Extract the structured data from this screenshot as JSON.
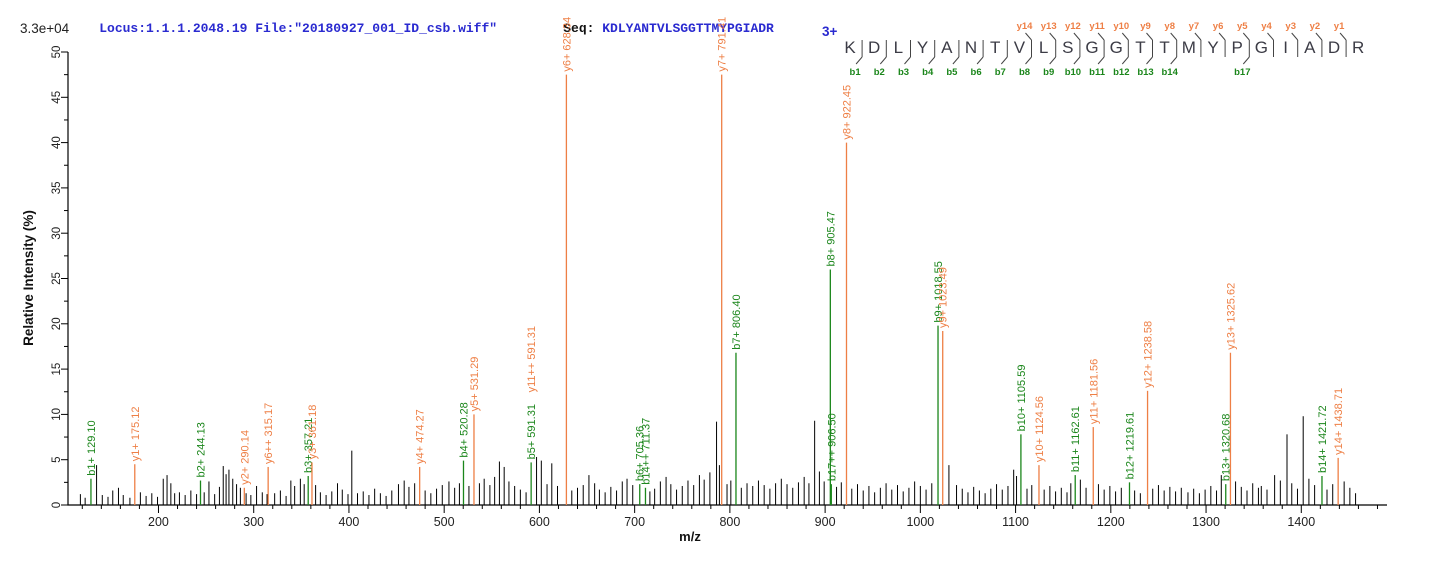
{
  "header": {
    "locus_file": "Locus:1.1.1.2048.19 File:\"20180927_001_ID_csb.wiff\"",
    "seq_label": "Seq: ",
    "seq_value": "KDLYANTVLSGGTTMYPGIADR",
    "scale_label": "3.3e+04"
  },
  "colors": {
    "header_blue": "#2a2ad0",
    "b_ion_green": "#1b861b",
    "y_ion_orange": "#ee7f45",
    "residue_text": "#3c3c46",
    "axis_black": "#000000"
  },
  "fragment_map": {
    "charge_label": "3+",
    "residues": [
      "K",
      "D",
      "L",
      "Y",
      "A",
      "N",
      "T",
      "V",
      "L",
      "S",
      "G",
      "G",
      "T",
      "T",
      "M",
      "Y",
      "P",
      "G",
      "I",
      "A",
      "D",
      "R"
    ],
    "b_boundaries": [
      1,
      2,
      3,
      4,
      5,
      6,
      7,
      8,
      9,
      10,
      11,
      12,
      13,
      14,
      17
    ],
    "y_boundaries": [
      8,
      9,
      10,
      11,
      12,
      13,
      14,
      15,
      16,
      17,
      18,
      19,
      20,
      21
    ]
  },
  "chart_data": {
    "type": "bar",
    "subtype": "ms2-fragmentation-spectrum",
    "title": "",
    "xlabel": "m/z",
    "ylabel": "Relative  Intensity (%)",
    "xlim": [
      105,
      1490
    ],
    "ylim": [
      0,
      50
    ],
    "x_major_ticks": [
      200,
      300,
      400,
      500,
      600,
      700,
      800,
      900,
      1000,
      1100,
      1200,
      1300,
      1400
    ],
    "x_minor_step": 20,
    "y_major_tick_step": 5,
    "y_minor_tick_step": 2.5,
    "labeled_peaks": [
      {
        "mz": 129.1,
        "pct": 2.9,
        "labels": [
          {
            "text": "b1+ 129.10",
            "ion": "b"
          }
        ]
      },
      {
        "mz": 175.12,
        "pct": 4.5,
        "labels": [
          {
            "text": "y1+ 175.12",
            "ion": "y"
          }
        ]
      },
      {
        "mz": 244.13,
        "pct": 2.7,
        "labels": [
          {
            "text": "b2+ 244.13",
            "ion": "b"
          }
        ]
      },
      {
        "mz": 290.14,
        "pct": 1.9,
        "labels": [
          {
            "text": "y2+ 290.14",
            "ion": "y"
          }
        ]
      },
      {
        "mz": 315.17,
        "pct": 4.2,
        "labels": [
          {
            "text": "y6++ 315.17",
            "ion": "y"
          }
        ]
      },
      {
        "mz": 357.21,
        "pct": 3.2,
        "labels": [
          {
            "text": "b3+ 357.21",
            "ion": "b"
          }
        ]
      },
      {
        "mz": 361.18,
        "pct": 4.7,
        "labels": [
          {
            "text": "y3+ 361.18",
            "ion": "y"
          }
        ]
      },
      {
        "mz": 474.27,
        "pct": 4.2,
        "labels": [
          {
            "text": "y4+ 474.27",
            "ion": "y"
          }
        ]
      },
      {
        "mz": 520.28,
        "pct": 4.9,
        "labels": [
          {
            "text": "b4+ 520.28",
            "ion": "b"
          }
        ]
      },
      {
        "mz": 531.29,
        "pct": 10.0,
        "labels": [
          {
            "text": "y5+ 531.29",
            "ion": "y"
          }
        ]
      },
      {
        "mz": 591.31,
        "pct": 4.7,
        "labels": [
          {
            "text": "b5+ 591.31",
            "ion": "b"
          },
          {
            "text": "y11++ 591.31",
            "ion": "y"
          }
        ]
      },
      {
        "mz": 628.34,
        "pct": 47.5,
        "labels": [
          {
            "text": "y6+ 628.34",
            "ion": "y"
          }
        ]
      },
      {
        "mz": 705.36,
        "pct": 2.3,
        "labels": [
          {
            "text": "b6+ 705.36",
            "ion": "b"
          }
        ]
      },
      {
        "mz": 711.37,
        "pct": 1.9,
        "labels": [
          {
            "text": "b14++ 711.37",
            "ion": "b"
          }
        ]
      },
      {
        "mz": 791.41,
        "pct": 47.5,
        "labels": [
          {
            "text": "y7+ 791.41",
            "ion": "y"
          }
        ]
      },
      {
        "mz": 806.4,
        "pct": 16.8,
        "labels": [
          {
            "text": "b7+ 806.40",
            "ion": "b"
          }
        ]
      },
      {
        "mz": 905.47,
        "pct": 26.0,
        "labels": [
          {
            "text": "b8+ 905.47",
            "ion": "b"
          }
        ]
      },
      {
        "mz": 906.5,
        "pct": 2.3,
        "labels": [
          {
            "text": "b17++ 906.50",
            "ion": "b"
          }
        ]
      },
      {
        "mz": 922.45,
        "pct": 40.0,
        "labels": [
          {
            "text": "y8+ 922.45",
            "ion": "y"
          }
        ]
      },
      {
        "mz": 1018.55,
        "pct": 19.8,
        "labels": [
          {
            "text": "b9+ 1018.55",
            "ion": "b"
          }
        ]
      },
      {
        "mz": 1023.49,
        "pct": 19.2,
        "labels": [
          {
            "text": "y9+ 1023.49",
            "ion": "y"
          }
        ]
      },
      {
        "mz": 1105.59,
        "pct": 7.8,
        "labels": [
          {
            "text": "b10+ 1105.59",
            "ion": "b"
          }
        ]
      },
      {
        "mz": 1124.56,
        "pct": 4.4,
        "labels": [
          {
            "text": "y10+ 1124.56",
            "ion": "y"
          }
        ]
      },
      {
        "mz": 1162.61,
        "pct": 3.3,
        "labels": [
          {
            "text": "b11+ 1162.61",
            "ion": "b"
          }
        ]
      },
      {
        "mz": 1181.56,
        "pct": 8.6,
        "labels": [
          {
            "text": "y11+ 1181.56",
            "ion": "y"
          }
        ]
      },
      {
        "mz": 1219.61,
        "pct": 2.5,
        "labels": [
          {
            "text": "b12+ 1219.61",
            "ion": "b"
          }
        ]
      },
      {
        "mz": 1238.58,
        "pct": 12.6,
        "labels": [
          {
            "text": "y12+ 1238.58",
            "ion": "y"
          }
        ]
      },
      {
        "mz": 1320.68,
        "pct": 2.3,
        "labels": [
          {
            "text": "b13+ 1320.68",
            "ion": "b"
          }
        ]
      },
      {
        "mz": 1325.62,
        "pct": 16.8,
        "labels": [
          {
            "text": "y13+ 1325.62",
            "ion": "y"
          }
        ]
      },
      {
        "mz": 1421.72,
        "pct": 3.2,
        "labels": [
          {
            "text": "b14+ 1421.72",
            "ion": "b"
          }
        ]
      },
      {
        "mz": 1438.71,
        "pct": 5.2,
        "labels": [
          {
            "text": "y14+ 1438.71",
            "ion": "y"
          }
        ]
      }
    ],
    "noise_peaks": [
      [
        118,
        1.2
      ],
      [
        123,
        0.8
      ],
      [
        135,
        4.4
      ],
      [
        141,
        1.1
      ],
      [
        147,
        0.9
      ],
      [
        152,
        1.6
      ],
      [
        158,
        1.9
      ],
      [
        163,
        1.1
      ],
      [
        170,
        0.8
      ],
      [
        181,
        1.4
      ],
      [
        187,
        1.0
      ],
      [
        193,
        1.3
      ],
      [
        199,
        0.9
      ],
      [
        205,
        2.9
      ],
      [
        209,
        3.3
      ],
      [
        213,
        2.4
      ],
      [
        217,
        1.3
      ],
      [
        222,
        1.4
      ],
      [
        228,
        1.1
      ],
      [
        234,
        1.6
      ],
      [
        240,
        1.2
      ],
      [
        248,
        1.4
      ],
      [
        253,
        2.6
      ],
      [
        259,
        1.2
      ],
      [
        264,
        2.0
      ],
      [
        268,
        4.3
      ],
      [
        271,
        3.4
      ],
      [
        274,
        3.9
      ],
      [
        278,
        2.9
      ],
      [
        282,
        2.3
      ],
      [
        286,
        1.9
      ],
      [
        292,
        1.3
      ],
      [
        297,
        1.1
      ],
      [
        303,
        2.1
      ],
      [
        309,
        1.4
      ],
      [
        314,
        1.2
      ],
      [
        322,
        1.3
      ],
      [
        328,
        1.6
      ],
      [
        334,
        1.0
      ],
      [
        339,
        2.7
      ],
      [
        343,
        2.1
      ],
      [
        349,
        2.9
      ],
      [
        353,
        2.3
      ],
      [
        365,
        2.2
      ],
      [
        370,
        1.4
      ],
      [
        376,
        1.1
      ],
      [
        382,
        1.5
      ],
      [
        388,
        2.4
      ],
      [
        393,
        1.7
      ],
      [
        399,
        1.2
      ],
      [
        403,
        6.0
      ],
      [
        409,
        1.3
      ],
      [
        415,
        1.5
      ],
      [
        421,
        1.1
      ],
      [
        427,
        1.8
      ],
      [
        433,
        1.3
      ],
      [
        439,
        1.0
      ],
      [
        445,
        1.6
      ],
      [
        452,
        2.3
      ],
      [
        458,
        2.7
      ],
      [
        463,
        2.0
      ],
      [
        469,
        2.4
      ],
      [
        480,
        1.6
      ],
      [
        486,
        1.3
      ],
      [
        492,
        1.8
      ],
      [
        498,
        2.2
      ],
      [
        505,
        2.6
      ],
      [
        511,
        1.9
      ],
      [
        516,
        2.4
      ],
      [
        526,
        2.1
      ],
      [
        537,
        2.4
      ],
      [
        542,
        2.9
      ],
      [
        548,
        2.2
      ],
      [
        553,
        3.1
      ],
      [
        558,
        4.8
      ],
      [
        563,
        4.2
      ],
      [
        568,
        2.6
      ],
      [
        574,
        2.1
      ],
      [
        580,
        1.7
      ],
      [
        586,
        1.4
      ],
      [
        597,
        5.3
      ],
      [
        602,
        4.9
      ],
      [
        608,
        2.3
      ],
      [
        613,
        4.6
      ],
      [
        619,
        2.1
      ],
      [
        634,
        1.6
      ],
      [
        640,
        1.9
      ],
      [
        646,
        2.2
      ],
      [
        652,
        3.3
      ],
      [
        658,
        2.4
      ],
      [
        663,
        1.7
      ],
      [
        669,
        1.4
      ],
      [
        675,
        2.0
      ],
      [
        681,
        1.6
      ],
      [
        687,
        2.6
      ],
      [
        692,
        2.9
      ],
      [
        698,
        2.2
      ],
      [
        716,
        1.5
      ],
      [
        721,
        1.8
      ],
      [
        727,
        2.6
      ],
      [
        733,
        3.1
      ],
      [
        738,
        2.3
      ],
      [
        744,
        1.7
      ],
      [
        750,
        2.1
      ],
      [
        756,
        2.7
      ],
      [
        762,
        2.2
      ],
      [
        768,
        3.3
      ],
      [
        773,
        2.8
      ],
      [
        779,
        3.6
      ],
      [
        786,
        9.2
      ],
      [
        789,
        4.4
      ],
      [
        797,
        2.3
      ],
      [
        801,
        2.7
      ],
      [
        812,
        1.9
      ],
      [
        818,
        2.4
      ],
      [
        824,
        2.1
      ],
      [
        830,
        2.7
      ],
      [
        836,
        2.2
      ],
      [
        842,
        1.8
      ],
      [
        848,
        2.4
      ],
      [
        854,
        2.9
      ],
      [
        860,
        2.3
      ],
      [
        866,
        1.9
      ],
      [
        872,
        2.5
      ],
      [
        878,
        3.1
      ],
      [
        883,
        2.4
      ],
      [
        889,
        9.3
      ],
      [
        894,
        3.7
      ],
      [
        899,
        2.6
      ],
      [
        912,
        2.0
      ],
      [
        917,
        2.5
      ],
      [
        928,
        1.8
      ],
      [
        934,
        2.3
      ],
      [
        940,
        1.6
      ],
      [
        946,
        2.1
      ],
      [
        952,
        1.4
      ],
      [
        958,
        1.9
      ],
      [
        964,
        2.4
      ],
      [
        970,
        1.7
      ],
      [
        976,
        2.2
      ],
      [
        982,
        1.5
      ],
      [
        988,
        1.9
      ],
      [
        994,
        2.6
      ],
      [
        1000,
        2.1
      ],
      [
        1006,
        1.7
      ],
      [
        1012,
        2.4
      ],
      [
        1030,
        4.4
      ],
      [
        1038,
        2.2
      ],
      [
        1044,
        1.8
      ],
      [
        1050,
        1.4
      ],
      [
        1056,
        2.0
      ],
      [
        1062,
        1.6
      ],
      [
        1068,
        1.3
      ],
      [
        1074,
        1.8
      ],
      [
        1080,
        2.3
      ],
      [
        1086,
        1.7
      ],
      [
        1092,
        2.1
      ],
      [
        1098,
        3.9
      ],
      [
        1101,
        3.2
      ],
      [
        1112,
        1.8
      ],
      [
        1117,
        2.2
      ],
      [
        1130,
        1.7
      ],
      [
        1136,
        2.1
      ],
      [
        1142,
        1.5
      ],
      [
        1148,
        1.9
      ],
      [
        1154,
        1.4
      ],
      [
        1158,
        2.4
      ],
      [
        1168,
        2.8
      ],
      [
        1174,
        1.9
      ],
      [
        1187,
        2.3
      ],
      [
        1193,
        1.7
      ],
      [
        1199,
        2.1
      ],
      [
        1205,
        1.5
      ],
      [
        1211,
        1.9
      ],
      [
        1225,
        1.6
      ],
      [
        1231,
        1.3
      ],
      [
        1244,
        1.8
      ],
      [
        1250,
        2.2
      ],
      [
        1256,
        1.6
      ],
      [
        1262,
        2.0
      ],
      [
        1268,
        1.5
      ],
      [
        1274,
        1.9
      ],
      [
        1281,
        1.4
      ],
      [
        1287,
        1.8
      ],
      [
        1293,
        1.3
      ],
      [
        1299,
        1.7
      ],
      [
        1305,
        2.1
      ],
      [
        1311,
        1.6
      ],
      [
        1316,
        3.3
      ],
      [
        1331,
        2.6
      ],
      [
        1337,
        2.0
      ],
      [
        1343,
        1.6
      ],
      [
        1349,
        2.4
      ],
      [
        1355,
        1.9
      ],
      [
        1358,
        2.1
      ],
      [
        1364,
        1.7
      ],
      [
        1372,
        3.3
      ],
      [
        1378,
        2.7
      ],
      [
        1385,
        7.8
      ],
      [
        1390,
        2.4
      ],
      [
        1396,
        1.8
      ],
      [
        1402,
        9.8
      ],
      [
        1408,
        2.9
      ],
      [
        1414,
        2.2
      ],
      [
        1427,
        1.7
      ],
      [
        1433,
        2.3
      ],
      [
        1445,
        2.6
      ],
      [
        1451,
        1.9
      ],
      [
        1457,
        1.3
      ]
    ]
  }
}
